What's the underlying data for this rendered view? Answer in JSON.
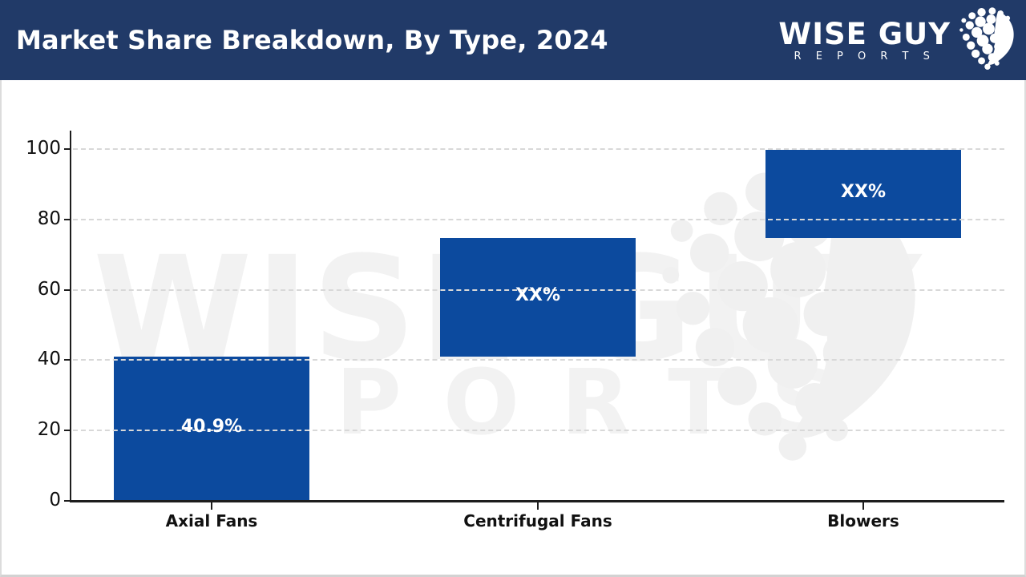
{
  "header": {
    "title": "Market Share Breakdown, By Type, 2024",
    "logo": {
      "name_top": "WISE GUY",
      "name_bottom": "R E P O R T S"
    }
  },
  "watermark": {
    "line1": "WISE GUY",
    "line2": "REPORTS"
  },
  "chart_data": {
    "type": "bar",
    "subtype": "floating-waterfall-bars",
    "title": "Market Share Breakdown, By Type, 2024",
    "categories": [
      "Axial Fans",
      "Centrifugal Fans",
      "Blowers"
    ],
    "series": [
      {
        "name": "Market share (%)",
        "segments": [
          {
            "category": "Axial Fans",
            "from": 0,
            "to": 40.9,
            "label": "40.9%"
          },
          {
            "category": "Centrifugal Fans",
            "from": 40.9,
            "to": 74.8,
            "label": "XX%"
          },
          {
            "category": "Blowers",
            "from": 74.8,
            "to": 99.8,
            "label": "XX%"
          }
        ]
      }
    ],
    "yticks": [
      0,
      20,
      40,
      60,
      80,
      100
    ],
    "ylim": [
      0,
      105
    ],
    "xlabel": "",
    "ylabel": "",
    "grid": "horizontal-dashed",
    "legend": "none",
    "bar_color": "#0c4a9e",
    "bar_label_color": "#ffffff"
  },
  "colors": {
    "header_bg": "#213a68",
    "header_text": "#ffffff",
    "bar": "#0c4a9e",
    "grid": "#d8d8d8",
    "axis": "#1d1d1d",
    "tick_text": "#111111",
    "watermark": "#f2f2f2"
  }
}
